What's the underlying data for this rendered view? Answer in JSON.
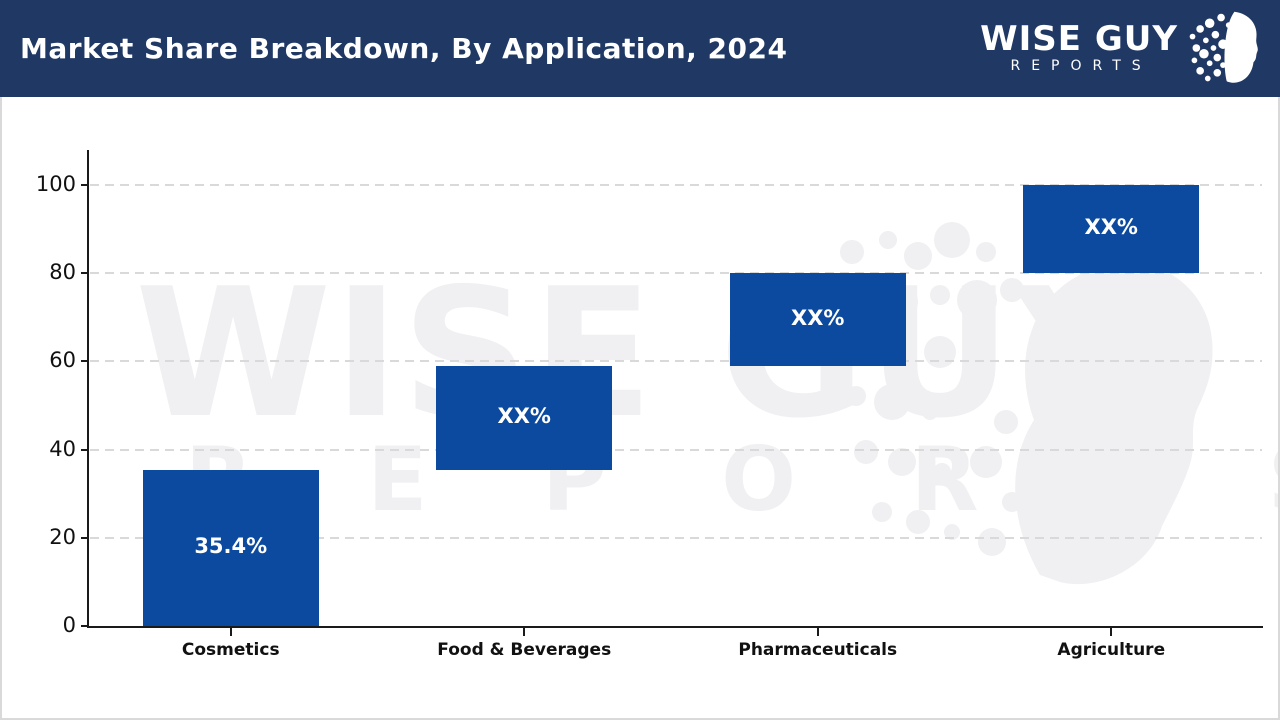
{
  "header": {
    "title": "Market Share Breakdown, By Application, 2024",
    "bg_color": "#1f3864",
    "logo": {
      "line1": "WISE GUY",
      "line2": "REPORTS"
    }
  },
  "watermark": {
    "line1": "WISE GUY",
    "line2": "REPORTS"
  },
  "chart_data": {
    "type": "bar",
    "subtype": "waterfall",
    "title": "Market Share Breakdown, By Application, 2024",
    "categories": [
      "Cosmetics",
      "Food & Beverages",
      "Pharmaceuticals",
      "Agriculture"
    ],
    "segments": [
      {
        "category": "Cosmetics",
        "start": 0,
        "end": 35.4,
        "label": "35.4%"
      },
      {
        "category": "Food & Beverages",
        "start": 35.4,
        "end": 59,
        "label": "XX%"
      },
      {
        "category": "Pharmaceuticals",
        "start": 59,
        "end": 80,
        "label": "XX%"
      },
      {
        "category": "Agriculture",
        "start": 80,
        "end": 100,
        "label": "XX%"
      }
    ],
    "yticks": [
      0,
      20,
      40,
      60,
      80,
      100
    ],
    "ylim": [
      0,
      108
    ],
    "xlabel": "",
    "ylabel": "",
    "grid": "horizontal-dashed",
    "legend": "none",
    "bar_color": "#0b4a9e",
    "grid_color": "#d9d9d9",
    "axis_color": "#1a1a1a"
  }
}
